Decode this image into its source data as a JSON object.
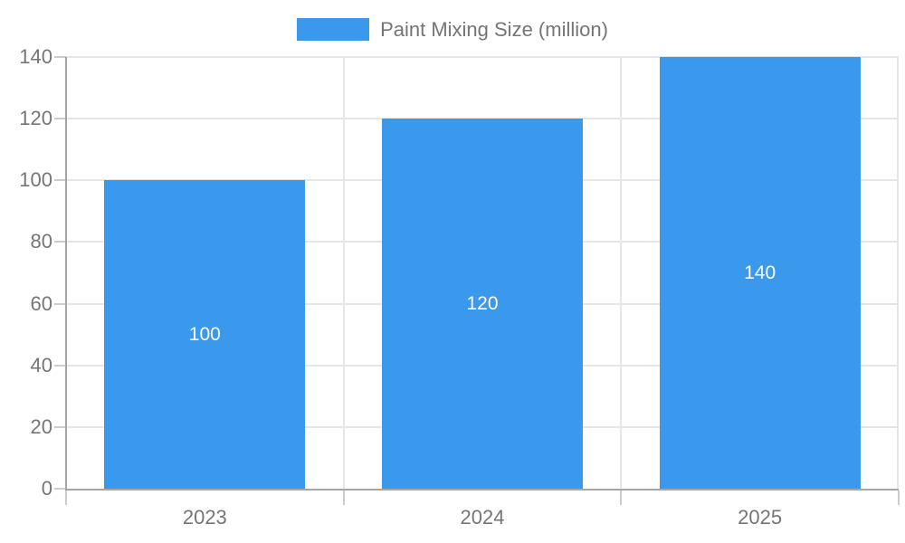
{
  "legend": {
    "label": "Paint Mixing Size (million)"
  },
  "chart_data": {
    "type": "bar",
    "title": "",
    "categories": [
      "2023",
      "2024",
      "2025"
    ],
    "series": [
      {
        "name": "Paint Mixing Size (million)",
        "values": [
          100,
          120,
          140
        ]
      }
    ],
    "bar_value_labels": [
      "100",
      "120",
      "140"
    ],
    "xlabel": "",
    "ylabel": "",
    "ylim": [
      0,
      140
    ],
    "yticks": [
      0,
      20,
      40,
      60,
      80,
      100,
      120,
      140
    ],
    "grid": true,
    "legend_position": "top"
  },
  "colors": {
    "bar": "#3A99EC",
    "grid": "#E6E6E6",
    "axis": "#A6A6A6",
    "tick": "#CCCCCC",
    "text": "#757575",
    "bar_label": "#FFFFFF",
    "background": "#FFFFFF"
  }
}
